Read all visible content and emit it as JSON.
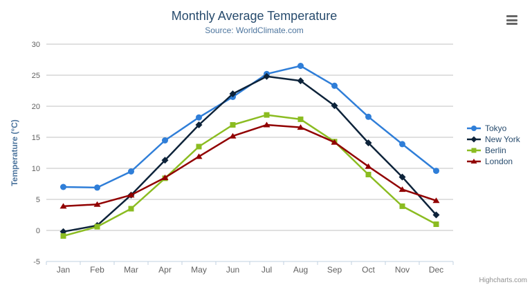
{
  "chart_data": {
    "type": "line",
    "title": "Monthly Average Temperature",
    "subtitle": "Source: WorldClimate.com",
    "xlabel": "",
    "ylabel": "Temperature (°C)",
    "categories": [
      "Jan",
      "Feb",
      "Mar",
      "Apr",
      "May",
      "Jun",
      "Jul",
      "Aug",
      "Sep",
      "Oct",
      "Nov",
      "Dec"
    ],
    "series": [
      {
        "name": "Tokyo",
        "color": "#2f7ed8",
        "marker": "circle",
        "values": [
          7.0,
          6.9,
          9.5,
          14.5,
          18.2,
          21.5,
          25.2,
          26.5,
          23.3,
          18.3,
          13.9,
          9.6
        ]
      },
      {
        "name": "New York",
        "color": "#0d233a",
        "marker": "diamond",
        "values": [
          -0.2,
          0.8,
          5.7,
          11.3,
          17.0,
          22.0,
          24.8,
          24.1,
          20.1,
          14.1,
          8.6,
          2.5
        ]
      },
      {
        "name": "Berlin",
        "color": "#8bbc21",
        "marker": "square",
        "values": [
          -0.9,
          0.6,
          3.5,
          8.4,
          13.5,
          17.0,
          18.6,
          17.9,
          14.3,
          9.0,
          3.9,
          1.0
        ]
      },
      {
        "name": "London",
        "color": "#910000",
        "marker": "triangle",
        "values": [
          3.9,
          4.2,
          5.7,
          8.5,
          11.9,
          15.2,
          17.0,
          16.6,
          14.2,
          10.3,
          6.6,
          4.8
        ]
      }
    ],
    "ylim": [
      -5,
      30
    ],
    "yticks": [
      -5,
      0,
      5,
      10,
      15,
      20,
      25,
      30
    ],
    "grid": true,
    "legend_position": "right"
  },
  "style_colors": {
    "grid": "#c0c0c0",
    "axis_line": "#c0d0e0",
    "tick_label": "#606060",
    "title": "#274b6d",
    "subtitle": "#4d759e",
    "axis_title": "#4d759e",
    "legend_text": "#274b6d",
    "credits": "#909090",
    "menu_icon": "#666666"
  },
  "menu": {
    "icon": "hamburger-menu-icon"
  },
  "credits": {
    "label": "Highcharts.com"
  }
}
